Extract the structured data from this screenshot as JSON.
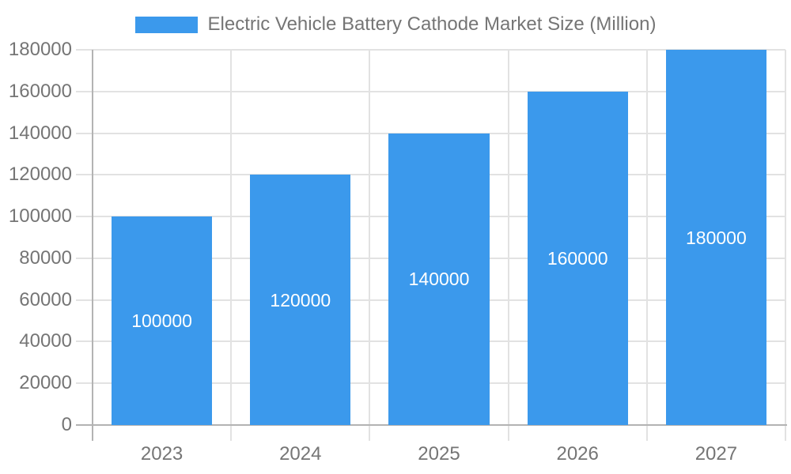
{
  "legend": {
    "label": "Electric Vehicle Battery Cathode Market Size (Million)"
  },
  "chart_data": {
    "type": "bar",
    "title": "Electric Vehicle Battery Cathode Market Size (Million)",
    "categories": [
      "2023",
      "2024",
      "2025",
      "2026",
      "2027"
    ],
    "values": [
      100000,
      120000,
      140000,
      160000,
      180000
    ],
    "bar_labels": [
      "100000",
      "120000",
      "140000",
      "160000",
      "180000"
    ],
    "y_tick_labels": [
      "0",
      "20000",
      "40000",
      "60000",
      "80000",
      "100000",
      "120000",
      "140000",
      "160000",
      "180000"
    ],
    "xlabel": "",
    "ylabel": "",
    "ylim": [
      0,
      180000
    ],
    "ytick_step": 20000,
    "grid": true,
    "legend_position": "top",
    "colors": {
      "bar": "#3B99EC",
      "bar_label_text": "#ffffff",
      "axis": "#b3b3b3",
      "gridline": "#e2e2e2",
      "tick": "#e2e2e2",
      "tick_label_text": "#757575",
      "legend_text": "#757575",
      "background": "#ffffff"
    }
  }
}
